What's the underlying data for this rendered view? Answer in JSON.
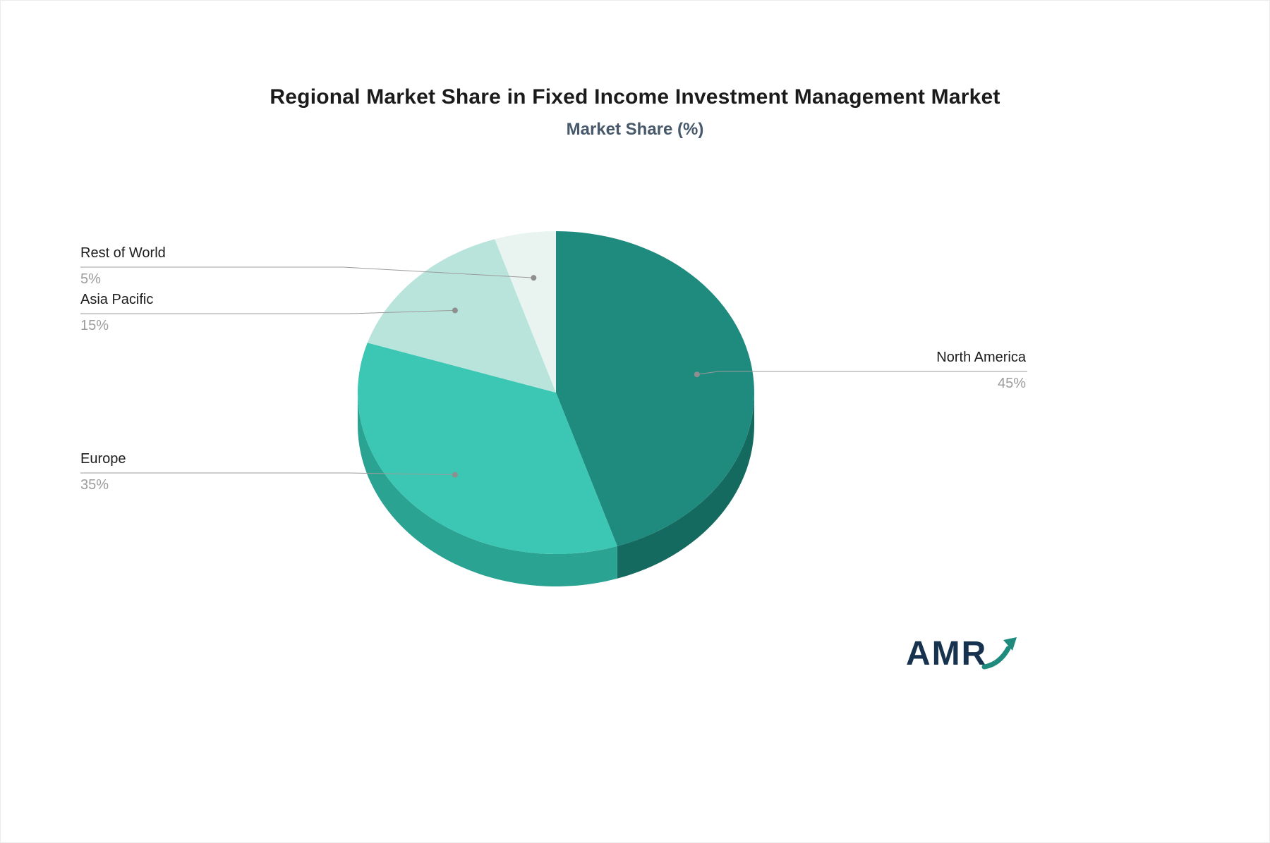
{
  "chart_data": {
    "type": "pie",
    "title": "Regional Market Share in Fixed Income Investment Management Market",
    "subtitle": "Market Share (%)",
    "unit": "%",
    "effect": "3d",
    "legend": "none",
    "categories": [
      "North America",
      "Europe",
      "Asia Pacific",
      "Rest of World"
    ],
    "values": [
      45,
      35,
      15,
      5
    ],
    "colors": [
      "#1f8b7f",
      "#3bc7b3",
      "#b9e4db",
      "#e9f4f1"
    ],
    "side_colors": [
      "#156a60",
      "#2aa392",
      "#93cec4",
      "#cde4df"
    ],
    "labels": [
      {
        "name": "North America",
        "value": "45%",
        "side": "right"
      },
      {
        "name": "Europe",
        "value": "35%",
        "side": "left"
      },
      {
        "name": "Asia Pacific",
        "value": "15%",
        "side": "left"
      },
      {
        "name": "Rest of World",
        "value": "5%",
        "side": "left"
      }
    ]
  },
  "branding": {
    "logo_text": "AMR",
    "logo_color": "#16324e",
    "arrow_color": "#1f8b7f"
  }
}
